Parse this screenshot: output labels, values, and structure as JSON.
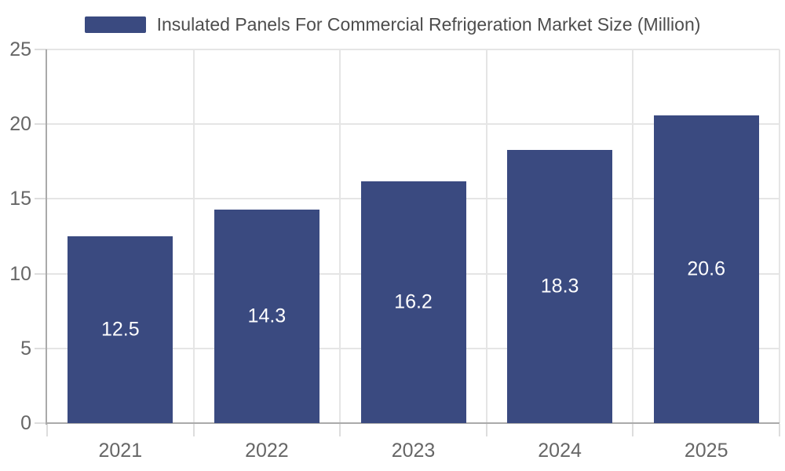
{
  "chart_data": {
    "type": "bar",
    "title": "",
    "legend_label": "Insulated Panels For Commercial Refrigeration Market Size (Million)",
    "categories": [
      "2021",
      "2022",
      "2023",
      "2024",
      "2025"
    ],
    "values": [
      12.5,
      14.3,
      16.2,
      18.3,
      20.6
    ],
    "value_labels": [
      "12.5",
      "14.3",
      "16.2",
      "18.3",
      "20.6"
    ],
    "xlabel": "",
    "ylabel": "",
    "ylim": [
      0,
      25
    ],
    "yticks": [
      0,
      5,
      10,
      15,
      20,
      25
    ],
    "ytick_labels": [
      "0",
      "5",
      "10",
      "15",
      "20",
      "25"
    ],
    "grid": true,
    "legend_position": "top-center",
    "colors": {
      "bar": "#3A4A80",
      "bar_label": "#ffffff",
      "axis_line": "#aaaaaa",
      "grid_line": "#e5e5e5",
      "tick_line": "#dddddd",
      "tick_label": "#666666",
      "legend_text": "#4d4d4d",
      "background": "#ffffff"
    }
  }
}
